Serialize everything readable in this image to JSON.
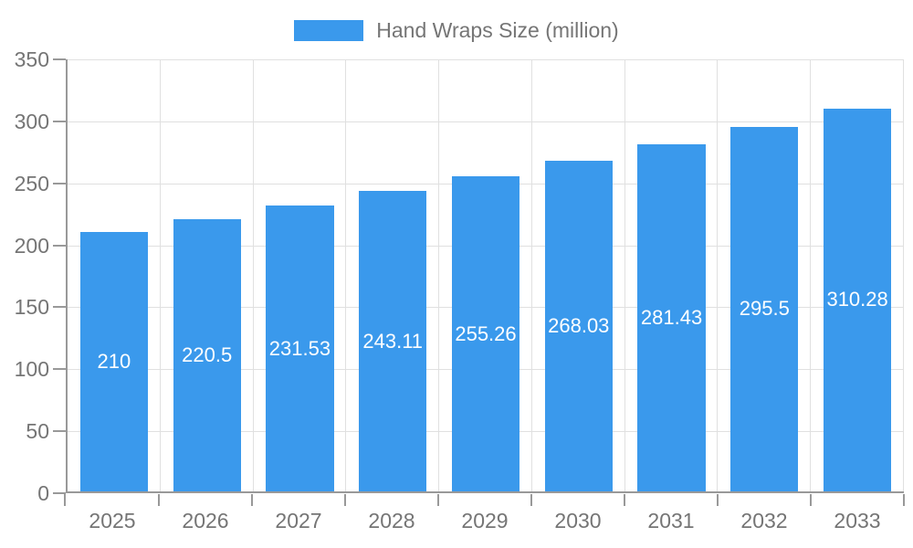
{
  "chart_data": {
    "type": "bar",
    "title": "",
    "legend": "Hand Wraps Size (million)",
    "legend_position": "top",
    "categories": [
      "2025",
      "2026",
      "2027",
      "2028",
      "2029",
      "2030",
      "2031",
      "2032",
      "2033"
    ],
    "series": [
      {
        "name": "Hand Wraps Size (million)",
        "values": [
          210,
          220.5,
          231.53,
          243.11,
          255.26,
          268.03,
          281.43,
          295.5,
          310.28
        ]
      }
    ],
    "value_labels": [
      "210",
      "220.5",
      "231.53",
      "243.11",
      "255.26",
      "268.03",
      "281.43",
      "295.5",
      "310.28"
    ],
    "xlabel": "",
    "ylabel": "",
    "ylim": [
      0,
      350
    ],
    "yticks": [
      0,
      50,
      100,
      150,
      200,
      250,
      300,
      350
    ],
    "grid": true,
    "colors": {
      "bar": "#3a99ec",
      "grid": "#e0e0e0",
      "axis": "#999999",
      "axis_text": "#757575",
      "bar_label_text": "#ffffff",
      "background": "#ffffff"
    }
  }
}
